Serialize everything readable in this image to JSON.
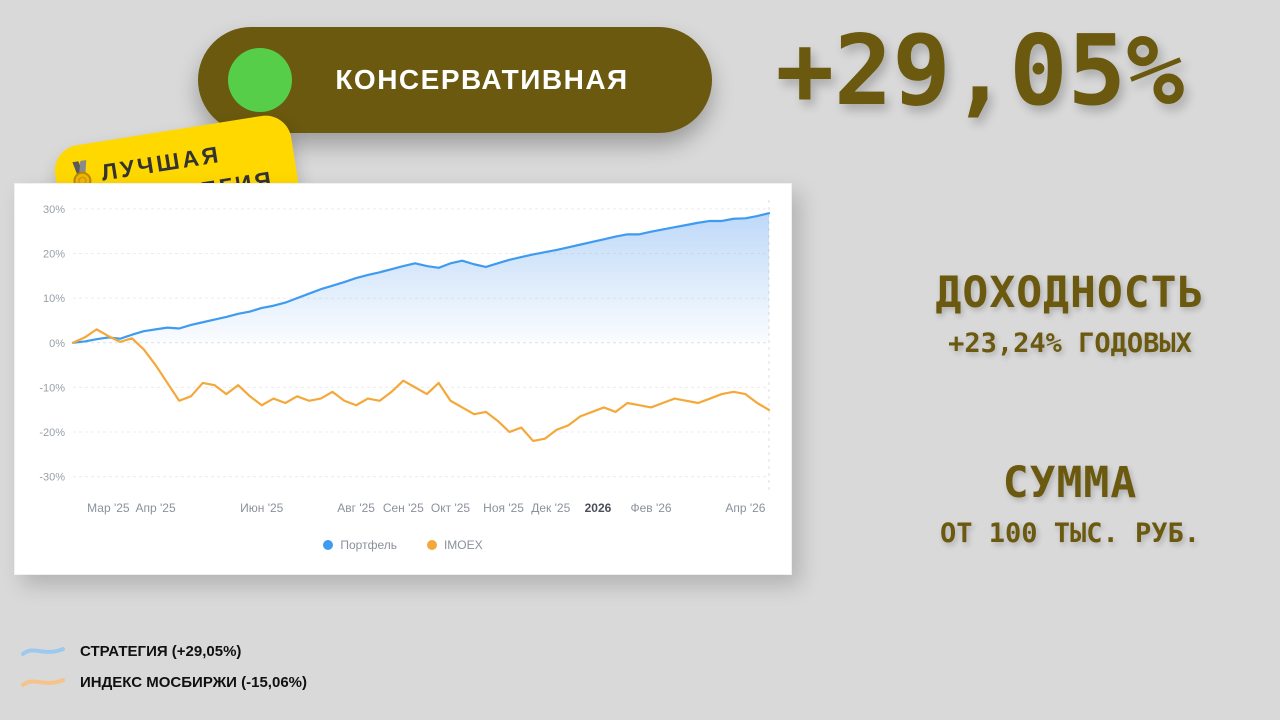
{
  "header": {
    "strategy_label": "КОНСЕРВАТИВНАЯ",
    "return_value": "+29,05%",
    "dot_color": "#57ce4a",
    "pill_bg": "#6a590e",
    "accent_color": "#6a590e"
  },
  "sticker": {
    "line1": "ЛУЧШАЯ",
    "line2": "СТРАТЕГИЯ",
    "icon": "medal-icon",
    "bg_color": "#ffd800"
  },
  "stats": {
    "yield_title": "ДОХОДНОСТЬ",
    "yield_value": "+23,24% ГОДОВЫХ",
    "sum_title": "СУММА",
    "sum_value": "ОТ 100 ТЫС. РУБ."
  },
  "footer_legend": {
    "items": [
      {
        "label": "СТРАТЕГИЯ (+29,05%)",
        "color": "#9ec9ee"
      },
      {
        "label": "ИНДЕКС МОСБИРЖИ (-15,06%)",
        "color": "#f6c38b"
      }
    ]
  },
  "chart_data": {
    "type": "line",
    "title": "",
    "xlabel": "",
    "ylabel": "",
    "ylim": [
      -33,
      32
    ],
    "grid": true,
    "legend_position": "bottom",
    "y_ticks": [
      {
        "value": 30,
        "label": "30%"
      },
      {
        "value": 20,
        "label": "20%"
      },
      {
        "value": 10,
        "label": "10%"
      },
      {
        "value": 0,
        "label": "0%"
      },
      {
        "value": -10,
        "label": "-10%"
      },
      {
        "value": -20,
        "label": "-20%"
      },
      {
        "value": -30,
        "label": "-30%"
      }
    ],
    "x_ticks": [
      {
        "pos": 3,
        "label": "Мар '25",
        "emphasis": false
      },
      {
        "pos": 7,
        "label": "Апр '25",
        "emphasis": false
      },
      {
        "pos": 16,
        "label": "Июн '25",
        "emphasis": false
      },
      {
        "pos": 24,
        "label": "Авг '25",
        "emphasis": false
      },
      {
        "pos": 28,
        "label": "Сен '25",
        "emphasis": false
      },
      {
        "pos": 32,
        "label": "Окт '25",
        "emphasis": false
      },
      {
        "pos": 36.5,
        "label": "Ноя '25",
        "emphasis": false
      },
      {
        "pos": 40.5,
        "label": "Дек '25",
        "emphasis": false
      },
      {
        "pos": 44.5,
        "label": "2026",
        "emphasis": true
      },
      {
        "pos": 49,
        "label": "Фев '26",
        "emphasis": false
      },
      {
        "pos": 57,
        "label": "Апр '26",
        "emphasis": false
      }
    ],
    "series": [
      {
        "name": "Портфель",
        "color": "#3f9bf0",
        "fill": true,
        "final_value_label": "+29,05%",
        "values": [
          0,
          0.3,
          0.8,
          1.2,
          0.9,
          1.8,
          2.6,
          3,
          3.4,
          3.2,
          4,
          4.6,
          5.2,
          5.8,
          6.5,
          7,
          7.8,
          8.3,
          9,
          10,
          11,
          12,
          12.8,
          13.6,
          14.5,
          15.2,
          15.8,
          16.5,
          17.2,
          17.8,
          17.2,
          16.8,
          17.8,
          18.4,
          17.6,
          17,
          17.8,
          18.6,
          19.2,
          19.8,
          20.3,
          20.8,
          21.4,
          22,
          22.6,
          23.2,
          23.8,
          24.3,
          24.3,
          24.9,
          25.4,
          25.9,
          26.4,
          26.9,
          27.3,
          27.3,
          27.8,
          27.9,
          28.4,
          29.05
        ]
      },
      {
        "name": "IMOEX",
        "color": "#f5a83a",
        "fill": false,
        "final_value_label": "-15,06%",
        "values": [
          0,
          1.2,
          3,
          1.5,
          0.2,
          1,
          -1.5,
          -5,
          -9,
          -13,
          -12,
          -9,
          -9.5,
          -11.5,
          -9.5,
          -12,
          -14,
          -12.5,
          -13.5,
          -12,
          -13,
          -12.5,
          -11,
          -13,
          -14,
          -12.5,
          -13,
          -11,
          -8.5,
          -10,
          -11.5,
          -9,
          -13,
          -14.5,
          -16,
          -15.5,
          -17.5,
          -20,
          -19,
          -22,
          -21.5,
          -19.5,
          -18.5,
          -16.5,
          -15.5,
          -14.5,
          -15.5,
          -13.5,
          -14,
          -14.5,
          -13.5,
          -12.5,
          -13,
          -13.5,
          -12.5,
          -11.5,
          -11,
          -11.5,
          -13.5,
          -15.06
        ]
      }
    ]
  }
}
